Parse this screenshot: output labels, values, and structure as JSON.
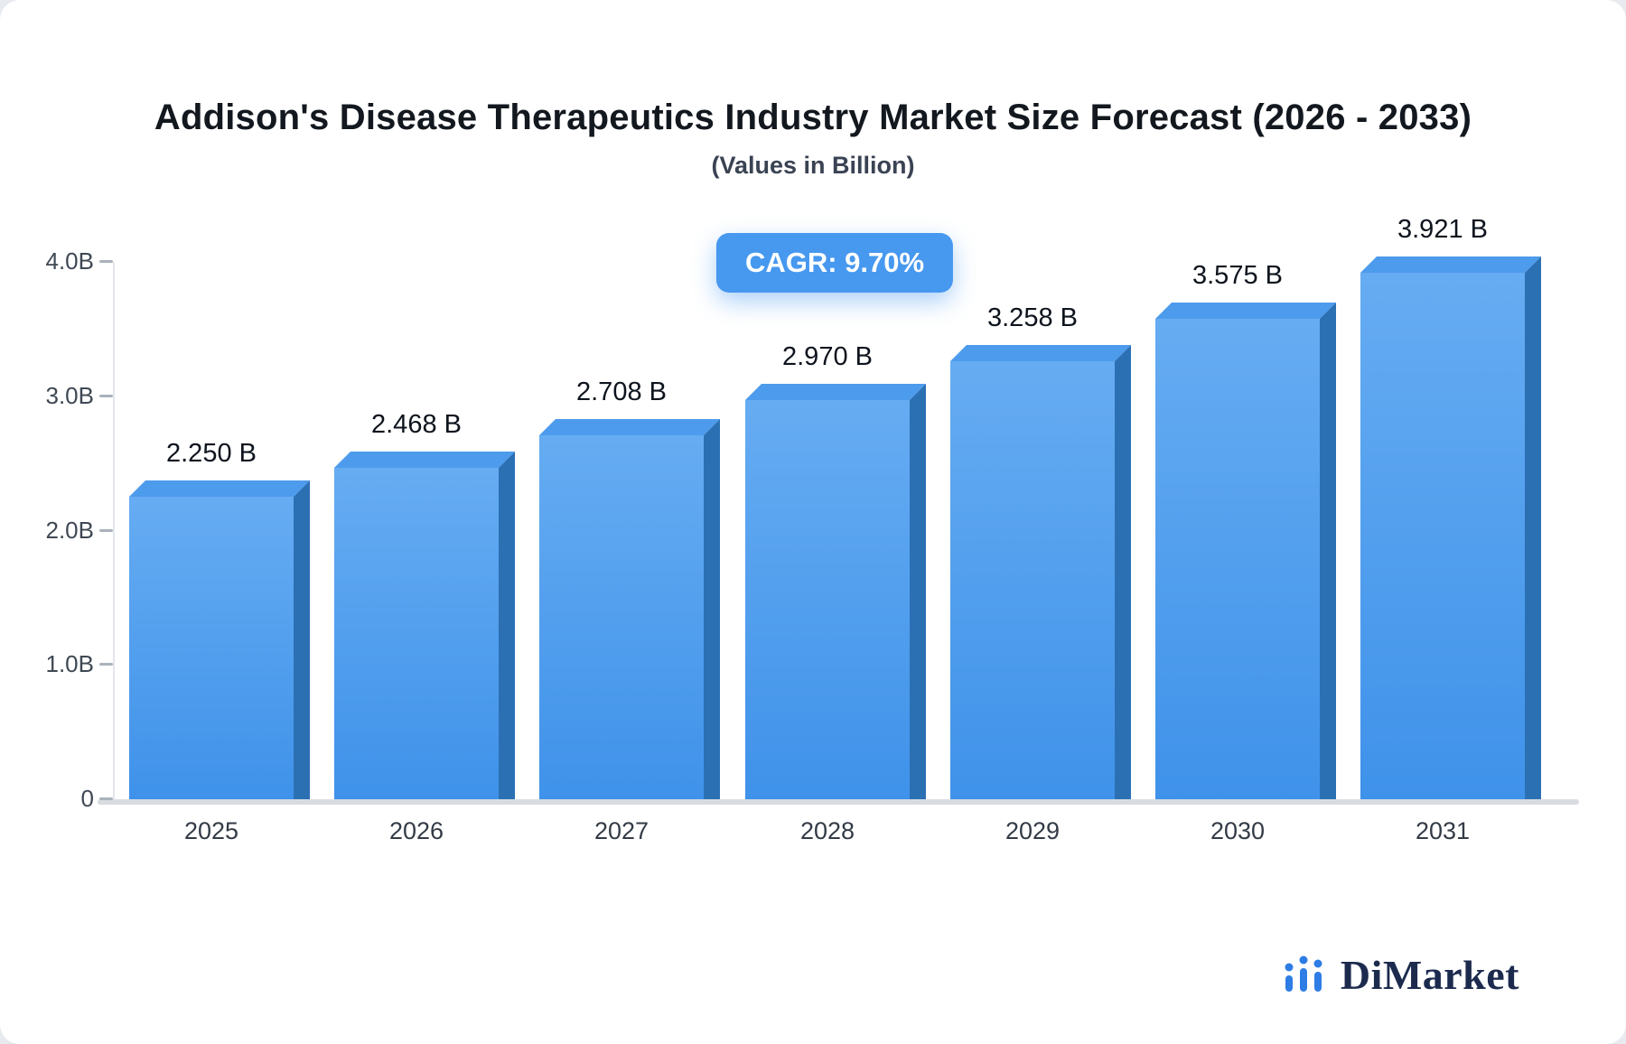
{
  "header": {
    "title": "Addison's Disease Therapeutics Industry Market Size Forecast (2026 - 2033)",
    "subtitle": "(Values in Billion)"
  },
  "badge": {
    "label": "CAGR: 9.70%",
    "color": "#4798ef"
  },
  "logo": {
    "text": "DiMarket",
    "icon": "bar-chart-dots-icon",
    "icon_color": "#2e7de5",
    "text_color": "#1c2a4e"
  },
  "chart_data": {
    "type": "bar",
    "title": "Addison's Disease Therapeutics Industry Market Size Forecast (2026 - 2033)",
    "subtitle": "(Values in Billion)",
    "cagr": "9.70%",
    "categories": [
      "2025",
      "2026",
      "2027",
      "2028",
      "2029",
      "2030",
      "2031"
    ],
    "values": [
      2.25,
      2.468,
      2.708,
      2.97,
      3.258,
      3.575,
      3.921
    ],
    "value_labels": [
      "2.250 B",
      "2.468 B",
      "2.708 B",
      "2.970 B",
      "3.258 B",
      "3.575 B",
      "3.921 B"
    ],
    "xlabel": "",
    "ylabel": "",
    "ylim": [
      0,
      4.0
    ],
    "yticks": [
      {
        "label": "0",
        "value": 0
      },
      {
        "label": "1.0B",
        "value": 1.0
      },
      {
        "label": "2.0B",
        "value": 2.0
      },
      {
        "label": "3.0B",
        "value": 3.0
      },
      {
        "label": "4.0B",
        "value": 4.0
      }
    ],
    "grid": false,
    "legend": false,
    "bar_front_color_top": "#66acf2",
    "bar_front_color_bottom": "#3f92ea",
    "bar_side_color": "#2c70b4",
    "bar_top_color": "#4d9bec"
  }
}
